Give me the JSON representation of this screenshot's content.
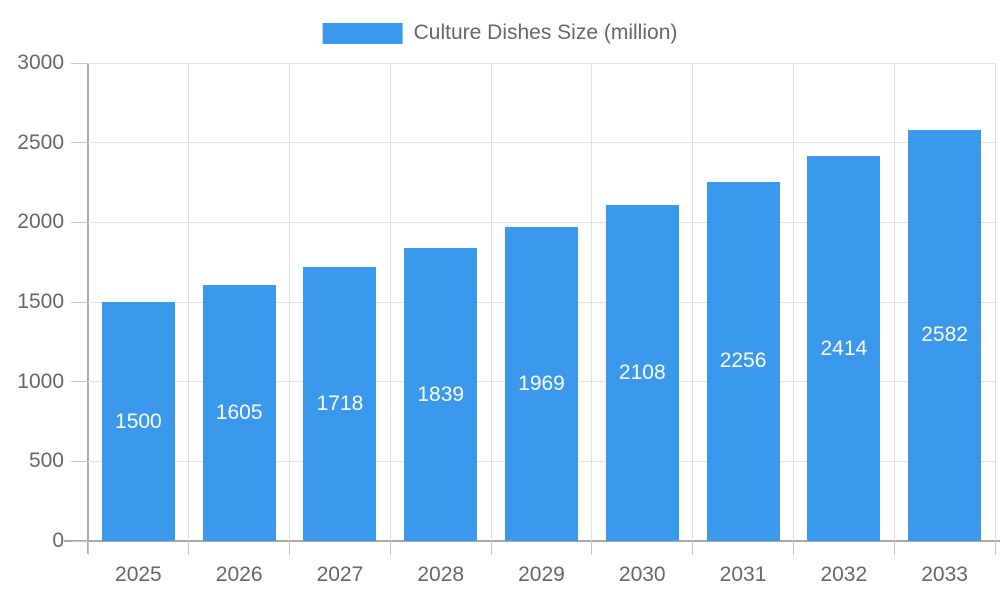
{
  "legend": {
    "label": "Culture Dishes Size (million)"
  },
  "colors": {
    "bar": "#3a99ec",
    "grid": "#e2e2e2",
    "axis": "#a9a9a9",
    "tick": "#c6c6c6",
    "axis_text": "#666666",
    "bar_label_text": "#ffffff"
  },
  "chart_data": {
    "type": "bar",
    "title": "Culture Dishes Size (million)",
    "categories": [
      "2025",
      "2026",
      "2027",
      "2028",
      "2029",
      "2030",
      "2031",
      "2032",
      "2033"
    ],
    "series": [
      {
        "name": "Culture Dishes Size (million)",
        "values": [
          1500,
          1605,
          1718,
          1839,
          1969,
          2108,
          2256,
          2414,
          2582
        ]
      }
    ],
    "xlabel": "",
    "ylabel": "",
    "ylim": [
      0,
      3000
    ],
    "yticks": [
      0,
      500,
      1000,
      1500,
      2000,
      2500,
      3000
    ],
    "grid": true,
    "legend_position": "top-center",
    "value_label_position": "inside-center"
  }
}
